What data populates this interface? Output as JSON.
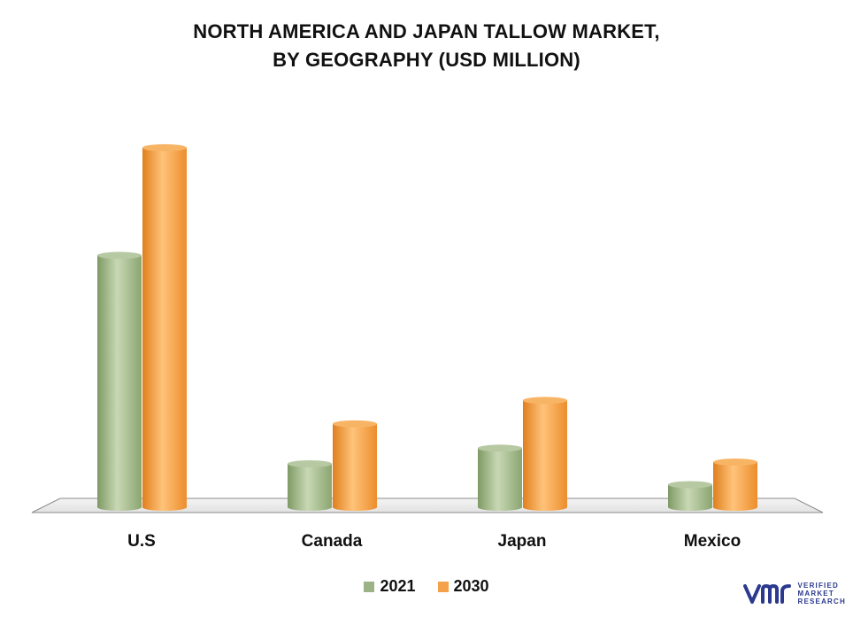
{
  "chart_data": {
    "type": "bar",
    "title_line1": "NORTH AMERICA AND JAPAN TALLOW MARKET,",
    "title_line2": "BY GEOGRAPHY (USD MILLION)",
    "categories": [
      "U.S",
      "Canada",
      "Japan",
      "Mexico"
    ],
    "series": [
      {
        "name": "2021",
        "values": [
          290,
          50,
          68,
          26
        ],
        "color": "#9cb386"
      },
      {
        "name": "2030",
        "values": [
          414,
          96,
          123,
          52
        ],
        "color": "#f5a04a"
      }
    ],
    "ylim": [
      0,
      420
    ],
    "grid": false,
    "legend_position": "bottom"
  },
  "logo": {
    "mark": "vmr",
    "lines": [
      "VERIFIED",
      "MARKET",
      "RESEARCH"
    ],
    "color": "#2b3a8f"
  }
}
